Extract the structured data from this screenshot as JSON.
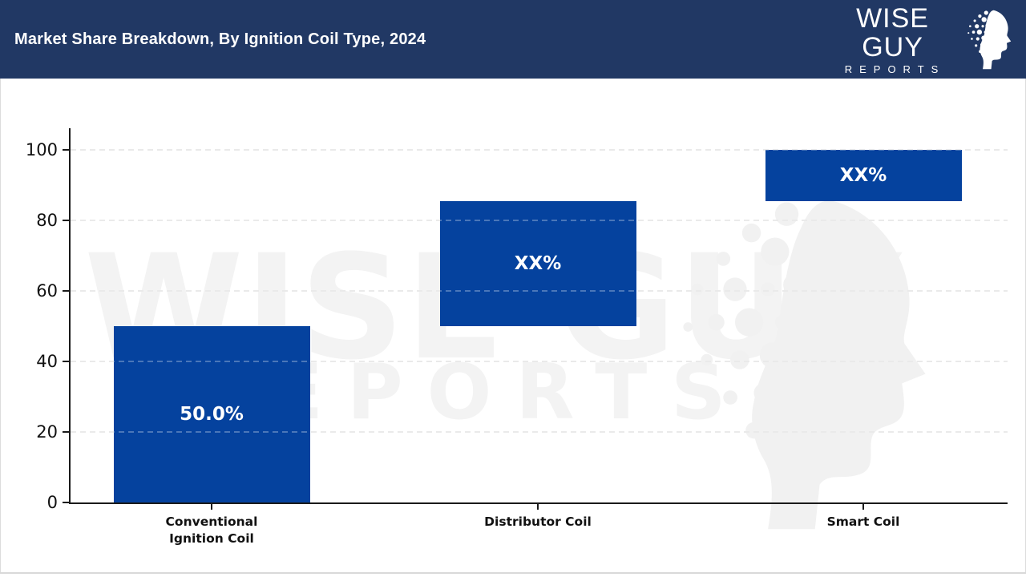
{
  "header": {
    "title": "Market Share Breakdown, By Ignition Coil Type, 2024",
    "logo": {
      "line1": "WISE GUY",
      "line2": "REPORTS"
    },
    "bg_color": "#213864"
  },
  "watermark": {
    "line1": "WISE GUY",
    "line2": "REPORTS"
  },
  "chart_data": {
    "type": "bar",
    "variant": "floating-stacked-breakdown",
    "title": "Market Share Breakdown, By Ignition Coil Type, 2024",
    "categories": [
      "Conventional Ignition Coil",
      "Distributor Coil",
      "Smart Coil"
    ],
    "category_lines": [
      [
        "Conventional",
        "Ignition Coil"
      ],
      [
        "Distributor Coil"
      ],
      [
        "Smart Coil"
      ]
    ],
    "segments": [
      {
        "category": "Conventional Ignition Coil",
        "start": 0,
        "end": 50,
        "label": "50.0%"
      },
      {
        "category": "Distributor Coil",
        "start": 50,
        "end": 85.5,
        "label": "XX%"
      },
      {
        "category": "Smart Coil",
        "start": 85.5,
        "end": 100,
        "label": "XX%"
      }
    ],
    "yticks": [
      0,
      20,
      40,
      60,
      80,
      100
    ],
    "ylim": [
      0,
      106
    ],
    "xlabel": "",
    "ylabel": "",
    "grid": "horizontal-dashed",
    "legend": "none",
    "bar_color": "#05429e",
    "bar_label_color": "#ffffff",
    "axis_color": "#1a1a1a",
    "grid_color": "#e2e2e2"
  }
}
